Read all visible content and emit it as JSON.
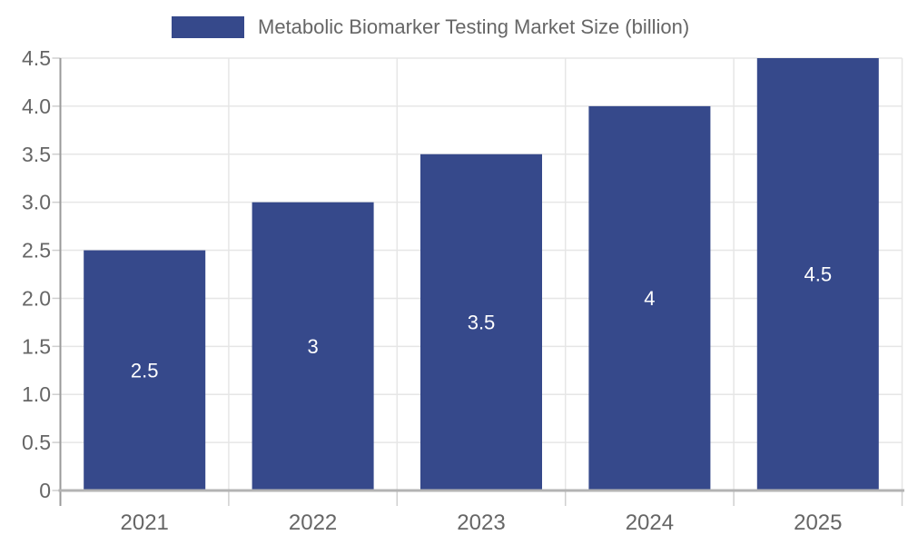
{
  "legend": {
    "label": "Metabolic Biomarker Testing Market Size (billion)"
  },
  "chart_data": {
    "type": "bar",
    "title": "Metabolic Biomarker Testing Market Size (billion)",
    "categories": [
      "2021",
      "2022",
      "2023",
      "2024",
      "2025"
    ],
    "values": [
      2.5,
      3,
      3.5,
      4,
      4.5
    ],
    "bar_labels": [
      "2.5",
      "3",
      "3.5",
      "4",
      "4.5"
    ],
    "xlabel": "",
    "ylabel": "",
    "ylim": [
      0,
      4.5
    ],
    "ytick_step": 0.5,
    "ytick_labels": [
      "0",
      "0.5",
      "1.0",
      "1.5",
      "2.0",
      "2.5",
      "3.0",
      "3.5",
      "4.0",
      "4.5"
    ],
    "grid": true,
    "legend_position": "top-center",
    "colors": {
      "bar": "#36498B",
      "bar_label_text": "#ffffff",
      "grid": "#e6e6e6",
      "tick": "#cfcfcf",
      "x_axis_line": "#b3b3b3",
      "y_axis_line": "#9a9a9a",
      "axis_label_text": "#666666",
      "legend_text": "#666666",
      "background": "#ffffff"
    }
  }
}
